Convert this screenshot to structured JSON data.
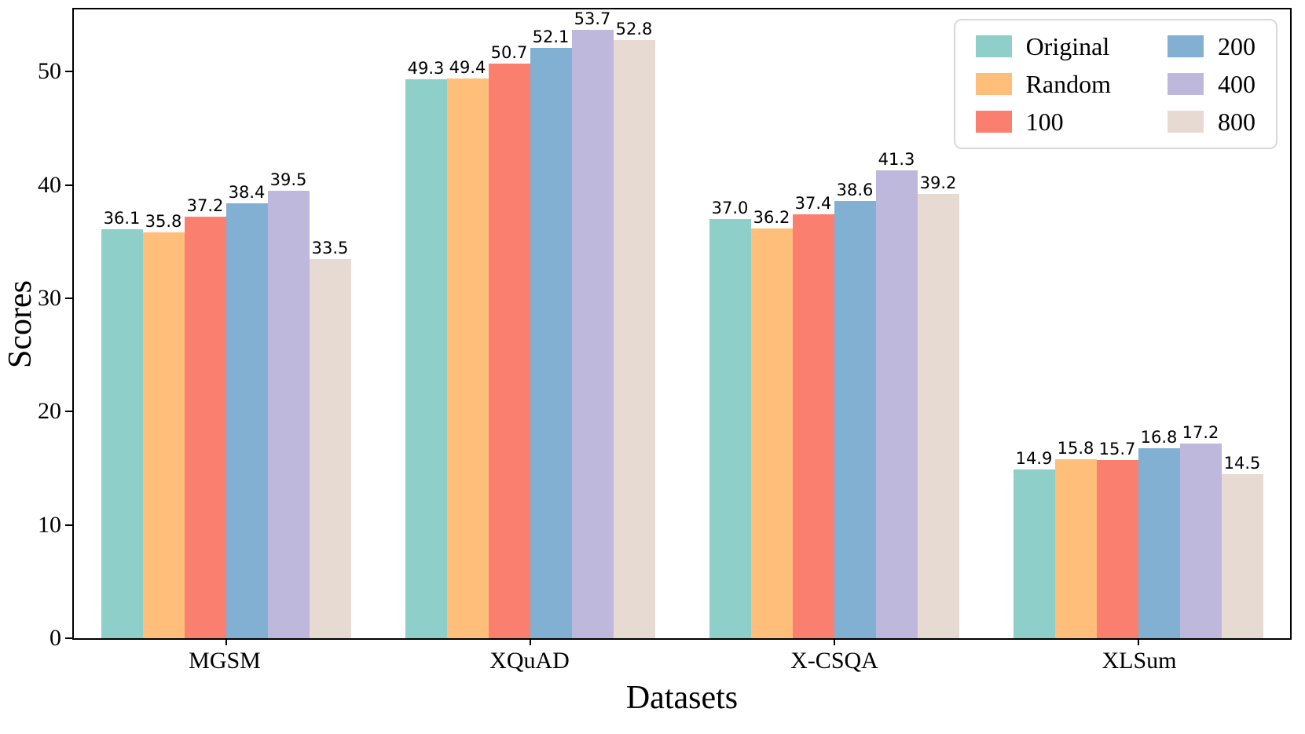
{
  "chart_data": {
    "type": "bar",
    "title": "",
    "xlabel": "Datasets",
    "ylabel": "Scores",
    "ylim": [
      0,
      55.5
    ],
    "yticks": [
      0,
      10,
      20,
      30,
      40,
      50
    ],
    "grid": false,
    "legend_position": "upper right",
    "categories": [
      "MGSM",
      "XQuAD",
      "X-CSQA",
      "XLSum"
    ],
    "series": [
      {
        "name": "Original",
        "color": "#8ECFC9",
        "values": [
          36.1,
          49.3,
          37.0,
          14.9
        ]
      },
      {
        "name": "Random",
        "color": "#FFBE7A",
        "values": [
          35.8,
          49.4,
          36.2,
          15.8
        ]
      },
      {
        "name": "100",
        "color": "#FA7F6F",
        "values": [
          37.2,
          50.7,
          37.4,
          15.7
        ]
      },
      {
        "name": "200",
        "color": "#82B0D2",
        "values": [
          38.4,
          52.1,
          38.6,
          16.8
        ]
      },
      {
        "name": "400",
        "color": "#BEB8DC",
        "values": [
          39.5,
          53.7,
          41.3,
          17.2
        ]
      },
      {
        "name": "800",
        "color": "#E7DAD2",
        "values": [
          33.5,
          52.8,
          39.2,
          14.5
        ]
      }
    ]
  }
}
